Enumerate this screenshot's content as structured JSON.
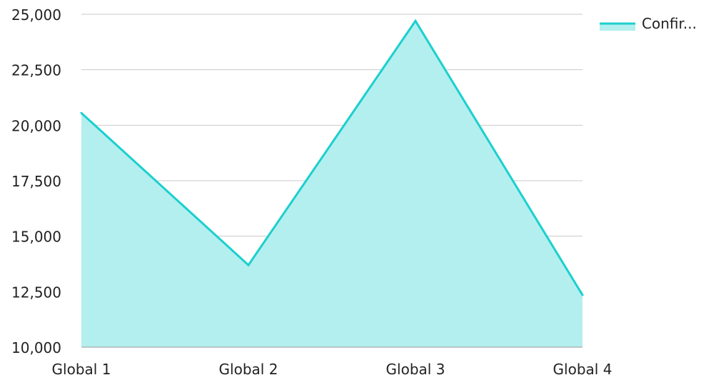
{
  "chart_data": {
    "type": "area",
    "categories": [
      "Global 1",
      "Global 2",
      "Global 3",
      "Global 4"
    ],
    "series": [
      {
        "name": "Confir...",
        "values": [
          20550,
          13700,
          24700,
          12350
        ],
        "line_color": "#1ccfcf",
        "fill_color": "#b3efee"
      }
    ],
    "y_ticks": [
      "25,000",
      "22,500",
      "20,000",
      "17,500",
      "15,000",
      "12,500",
      "10,000"
    ],
    "ylim": [
      10000,
      25000
    ],
    "grid": true,
    "legend_position": "top-right",
    "title": "",
    "xlabel": "",
    "ylabel": ""
  }
}
